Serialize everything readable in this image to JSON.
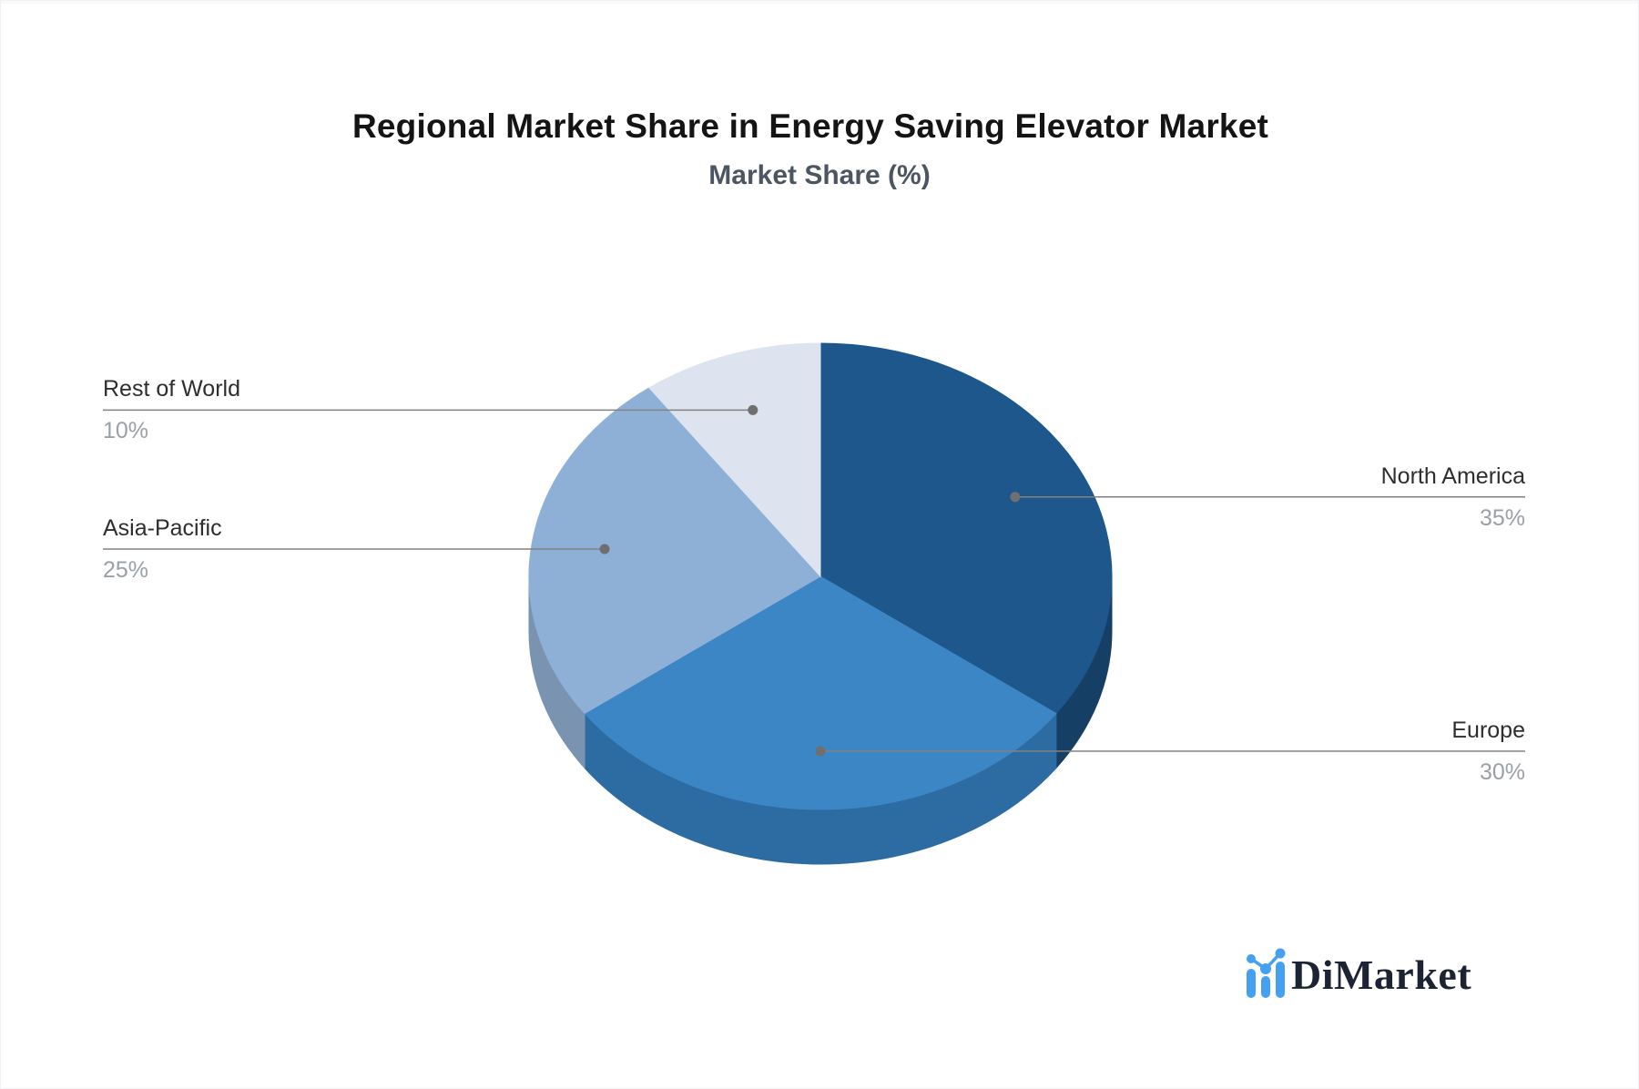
{
  "header": {
    "title": "Regional Market Share in Energy Saving Elevator Market",
    "subtitle": "Market Share (%)"
  },
  "chart_data": {
    "type": "pie",
    "style_3d": true,
    "title": "Regional Market Share in Energy Saving Elevator Market",
    "subtitle": "Market Share (%)",
    "unit": "%",
    "start_angle": "12-oclock",
    "direction": "clockwise",
    "slices": [
      {
        "label": "North America",
        "value": 35,
        "color": "#1e578c",
        "side_color": "#163f66",
        "label_side": "right"
      },
      {
        "label": "Europe",
        "value": 30,
        "color": "#3d86c6",
        "side_color": "#2d6ba3",
        "label_side": "right"
      },
      {
        "label": "Asia-Pacific",
        "value": 25,
        "color": "#8fb0d6",
        "side_color": "#7a93b0",
        "label_side": "left"
      },
      {
        "label": "Rest of World",
        "value": 10,
        "color": "#dde4ef",
        "side_color": "#c3cede",
        "label_side": "left"
      }
    ],
    "legend_position": "none",
    "labels_style": {
      "name_color": "#2e2e2e",
      "value_color": "#9aa0a6",
      "leader_line_color": "#828282",
      "leader_dot_color": "#6f6f6f"
    }
  },
  "branding": {
    "logo_text": "DiMarket",
    "logo_text_color": "#1c2433",
    "logo_accent_color": "#46a0f2"
  }
}
